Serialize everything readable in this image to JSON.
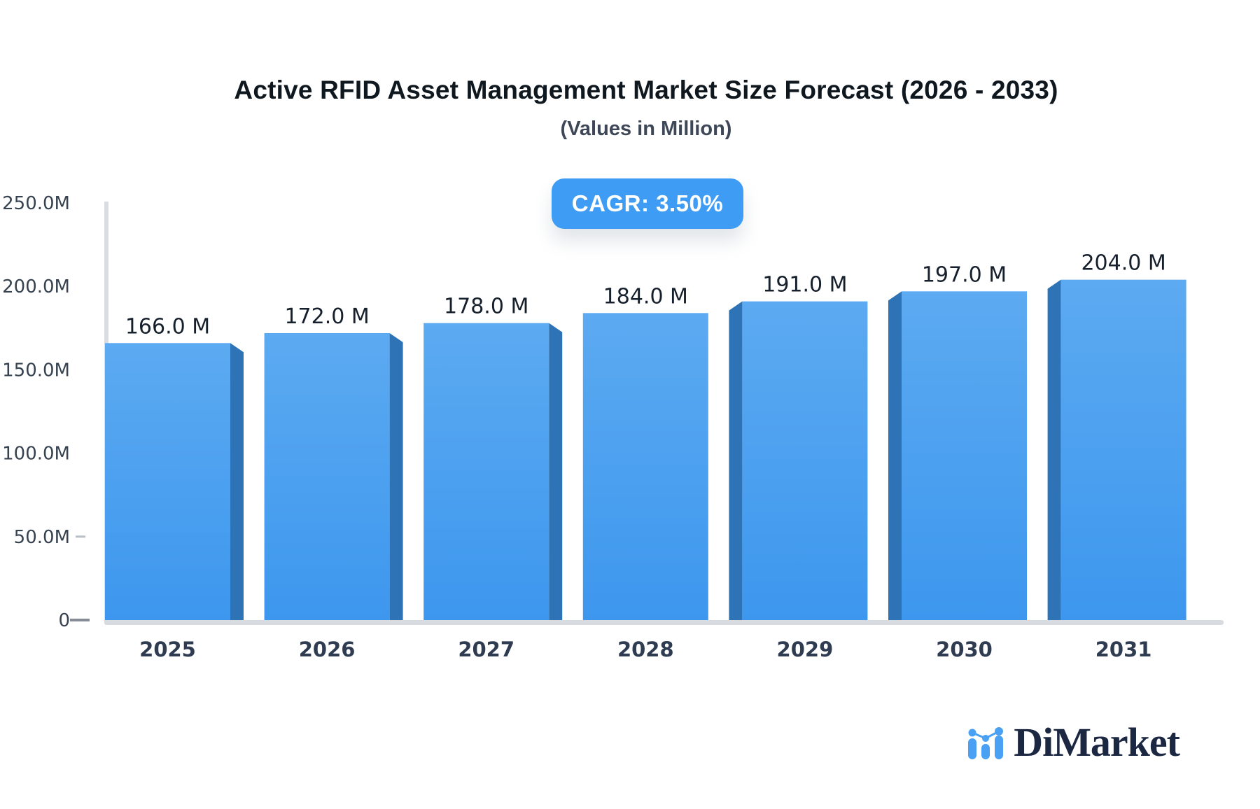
{
  "header": {
    "title": "Active RFID Asset Management Market Size Forecast (2026 - 2033)",
    "subtitle": "(Values in Million)",
    "cagr_badge": "CAGR: 3.50%"
  },
  "chart_data": {
    "type": "bar",
    "title": "Active RFID Asset Management Market Size Forecast (2026 - 2033)",
    "subtitle": "(Values in Million)",
    "unit": "Million",
    "cagr": "3.50%",
    "categories": [
      "2025",
      "2026",
      "2027",
      "2028",
      "2029",
      "2030",
      "2031"
    ],
    "values": [
      166.0,
      172.0,
      178.0,
      184.0,
      191.0,
      197.0,
      204.0
    ],
    "value_labels": [
      "166.0 M",
      "172.0 M",
      "178.0 M",
      "184.0 M",
      "191.0 M",
      "197.0 M",
      "204.0 M"
    ],
    "ylim": [
      0,
      250
    ],
    "y_ticks": [
      {
        "value": 0,
        "label": "0"
      },
      {
        "value": 50,
        "label": "50.0M"
      },
      {
        "value": 100,
        "label": "100.0M"
      },
      {
        "value": 150,
        "label": "150.0M"
      },
      {
        "value": 200,
        "label": "200.0M"
      },
      {
        "value": 250,
        "label": "250.0M"
      }
    ],
    "grid": false,
    "legend": false,
    "style_3d": true,
    "colors": {
      "bar_front_top": "#5caaf1",
      "bar_front_bottom": "#3d97ee",
      "bar_side": "#2d73b6",
      "accent": "#3e9cf4",
      "axis_line": "#d9dde2",
      "baseline": "#d7dbe0",
      "tick_minor": "#b9bfc7",
      "tick_zero": "#858c95",
      "tick_label": "#36424f",
      "category_label": "#2e3b50",
      "value_label": "#16202c"
    }
  },
  "footer": {
    "brand": "DiMarket",
    "logo_icon": "mini-bar-chart-trend-icon",
    "brand_color": "#1c2742",
    "logo_blue": "#4aa1f3"
  }
}
